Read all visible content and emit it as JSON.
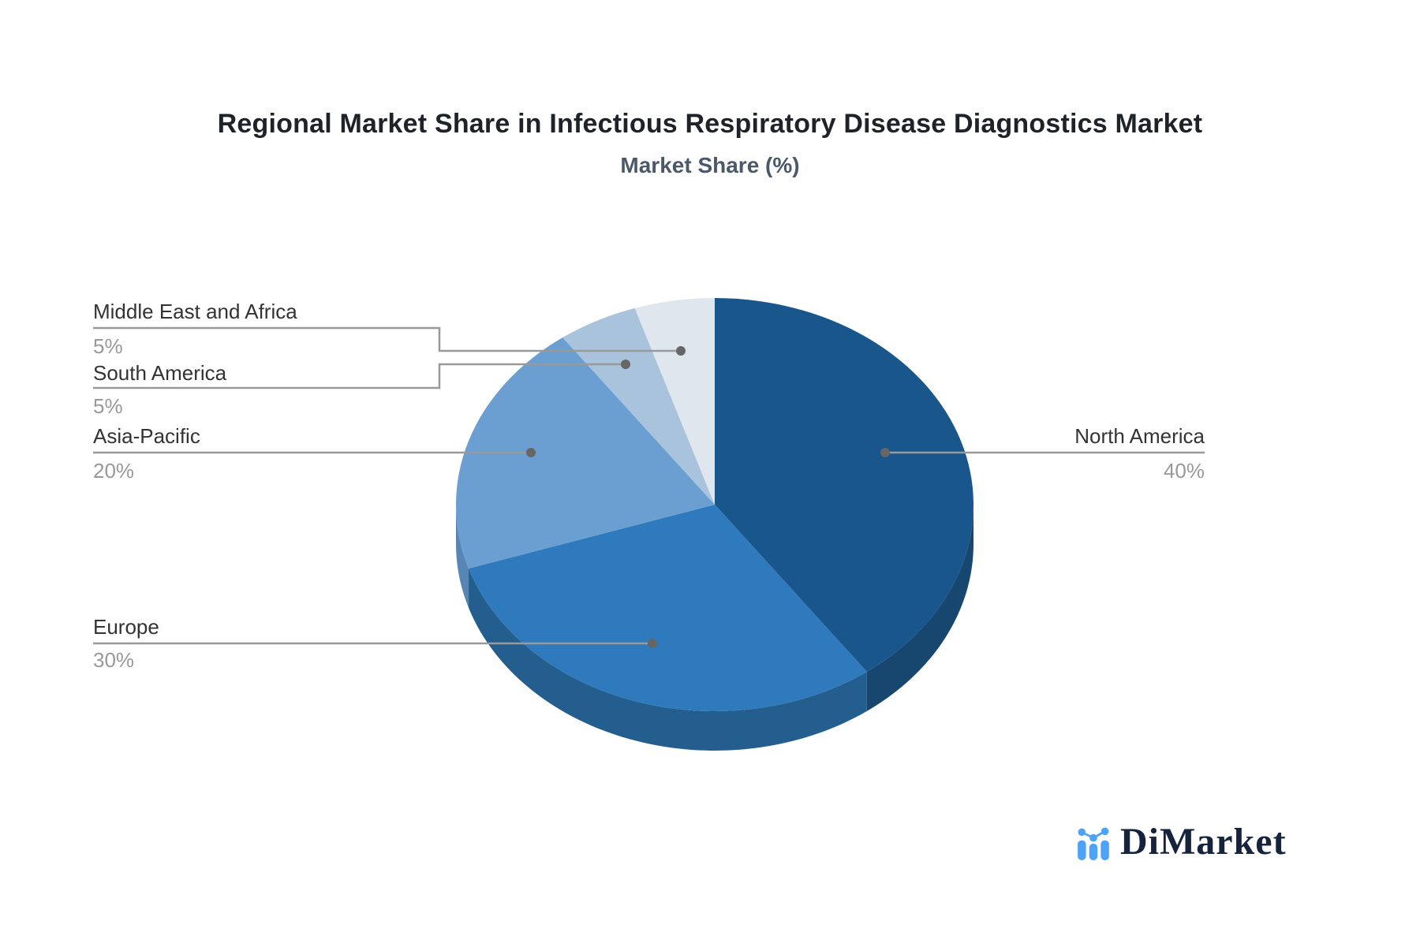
{
  "chart": {
    "title": "Regional Market Share in Infectious Respiratory Disease Diagnostics Market",
    "subtitle": "Market Share (%)"
  },
  "chart_data": {
    "type": "pie",
    "style": "3d-pie",
    "title": "Regional Market Share in Infectious Respiratory Disease Diagnostics Market",
    "subtitle": "Market Share (%)",
    "unit": "%",
    "start_angle": "12-oclock",
    "direction": "clockwise",
    "legend_position": "none",
    "label_style": "leader-line callouts, name above line, percent below",
    "slices": [
      {
        "name": "North America",
        "value": 40,
        "pct_label": "40%",
        "color": "#19568c",
        "side_color": "#17466f",
        "label_side": "right"
      },
      {
        "name": "Europe",
        "value": 30,
        "pct_label": "30%",
        "color": "#2e7abc",
        "side_color": "#235e8e",
        "label_side": "left"
      },
      {
        "name": "Asia-Pacific",
        "value": 20,
        "pct_label": "20%",
        "color": "#6b9fd2",
        "side_color": "#5886b4",
        "label_side": "left"
      },
      {
        "name": "South America",
        "value": 5,
        "pct_label": "5%",
        "color": "#a9c3dd",
        "side_color": "#93b1cf",
        "label_side": "left"
      },
      {
        "name": "Middle East and Africa",
        "value": 5,
        "pct_label": "5%",
        "color": "#dfe6ee",
        "side_color": "#c6d2e0",
        "label_side": "left"
      }
    ]
  },
  "colors": {
    "background": "#ffffff",
    "leader_line": "#999999",
    "leader_dot": "#666666",
    "label_text": "#333333",
    "pct_text": "#999999",
    "title_text": "#1f2329",
    "subtitle_text": "#4b586a"
  },
  "branding": {
    "logo_text": "DiMarket",
    "logo_text_color": "#15233c",
    "logo_icon": "bar-chart-icon",
    "logo_icon_color": "#4da3f7"
  }
}
